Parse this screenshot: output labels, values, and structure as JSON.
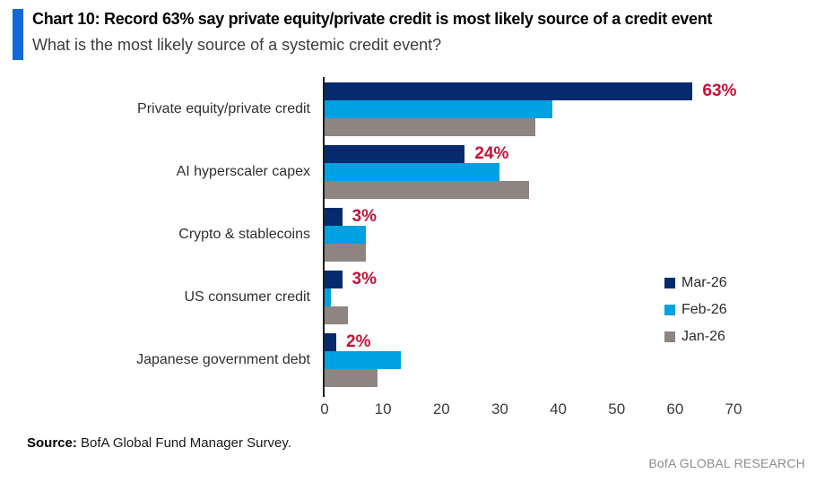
{
  "header": {
    "title": "Chart 10: Record 63% say private equity/private credit is most likely source of a credit event",
    "subtitle": "What is the most likely source of a systemic credit event?",
    "accent_color": "#1268d8"
  },
  "chart_data": {
    "type": "bar",
    "orientation": "horizontal",
    "title": "Chart 10: Record 63% say private equity/private credit is most likely source of a credit event",
    "subtitle": "What is the most likely source of a systemic credit event?",
    "categories": [
      "Private equity/private credit",
      "AI hyperscaler capex",
      "Crypto & stablecoins",
      "US consumer credit",
      "Japanese government debt"
    ],
    "series": [
      {
        "name": "Mar-26",
        "color": "#072a6e",
        "values": [
          63,
          24,
          3,
          3,
          2
        ]
      },
      {
        "name": "Feb-26",
        "color": "#00a1e0",
        "values": [
          39,
          30,
          7,
          1,
          13
        ]
      },
      {
        "name": "Jan-26",
        "color": "#8e8482",
        "values": [
          36,
          35,
          7,
          4,
          9
        ]
      }
    ],
    "value_labels": {
      "for_series": "Mar-26",
      "labels": [
        "63%",
        "24%",
        "3%",
        "3%",
        "2%"
      ],
      "color": "#c81036"
    },
    "xlim": [
      0,
      70
    ],
    "x_ticks": [
      0,
      10,
      20,
      30,
      40,
      50,
      60,
      70
    ],
    "grid": false,
    "legend_position": "right"
  },
  "footer": {
    "source_label": "Source:",
    "source_text": " BofA Global Fund Manager Survey.",
    "brand": "BofA GLOBAL RESEARCH"
  }
}
